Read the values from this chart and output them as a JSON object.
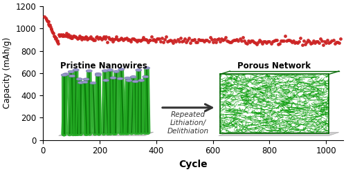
{
  "xlabel": "Cycle",
  "ylabel": "Capacity (mAh/g)",
  "xlim": [
    0,
    1060
  ],
  "ylim": [
    0,
    1200
  ],
  "xticks": [
    0,
    200,
    400,
    600,
    800,
    1000
  ],
  "yticks": [
    0,
    200,
    400,
    600,
    800,
    1000,
    1200
  ],
  "dot_color": "#CC2222",
  "dot_size": 12,
  "background_color": "#ffffff",
  "label_pristine": "Pristine Nanowires",
  "label_porous": "Porous Network",
  "label_arrow": "Repeated\nLithiation/\nDelithiation",
  "wire_green_light": "#22aa22",
  "wire_green_dark": "#006600",
  "wire_green_mid": "#009900",
  "ball_color": "#9999cc",
  "ball_edge": "#7777aa",
  "base_color": "#d0d0d0",
  "base_edge": "#aaaaaa",
  "figsize": [
    5.0,
    2.49
  ],
  "dpi": 100
}
